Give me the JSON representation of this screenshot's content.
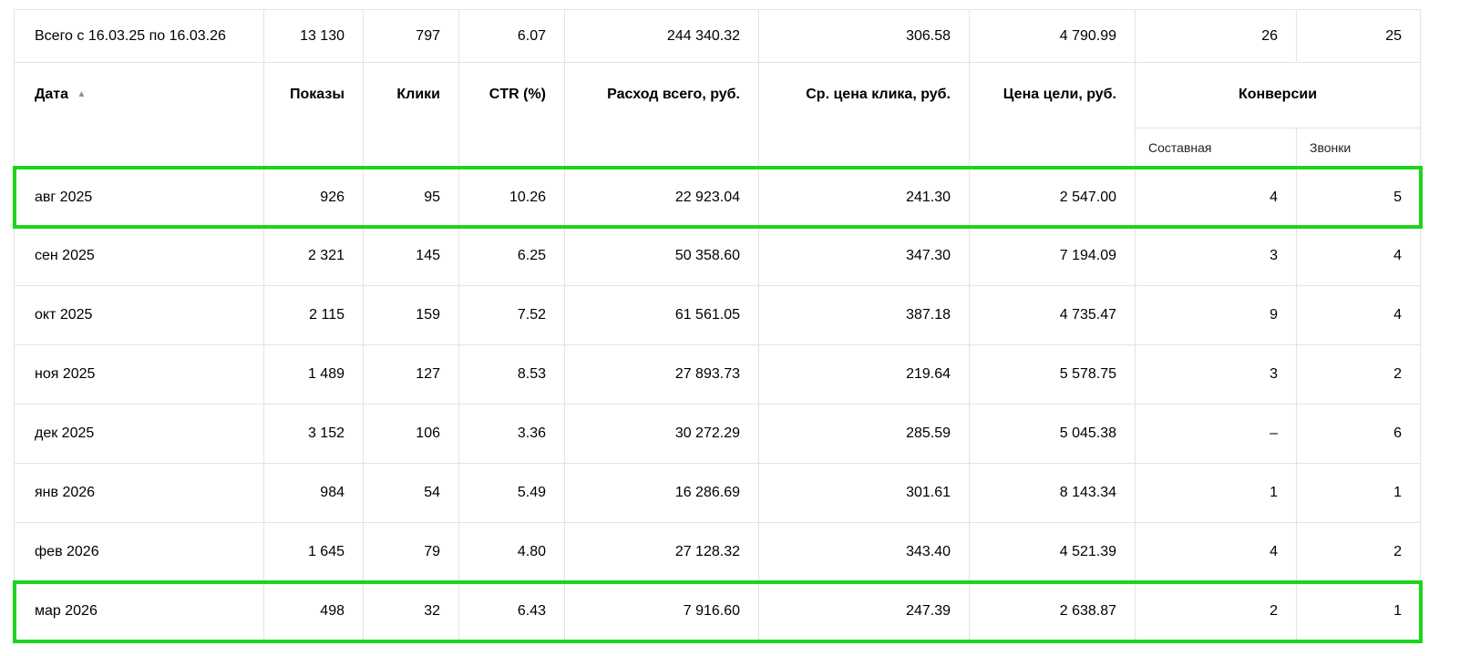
{
  "colors": {
    "highlight_green": "#1bd51b",
    "header_underline": "#000000",
    "grid_border": "#e3e3e3"
  },
  "table": {
    "totals": {
      "label": "Всего с 16.03.25 по 16.03.26",
      "values": [
        "13 130",
        "797",
        "6.07",
        "244 340.32",
        "306.58",
        "4 790.99",
        "26",
        "25"
      ]
    },
    "sort_icon": "▲",
    "columns": [
      {
        "label": "Дата",
        "sorted": "ascending"
      },
      {
        "label": "Показы"
      },
      {
        "label": "Клики"
      },
      {
        "label": "CTR (%)"
      },
      {
        "label": "Расход всего, руб."
      },
      {
        "label": "Ср. цена клика, руб."
      },
      {
        "label": "Цена цели, руб."
      },
      {
        "label": "Конверсии",
        "sub": [
          {
            "label": "Составная"
          },
          {
            "label": "Звонки"
          }
        ]
      }
    ],
    "rows": [
      {
        "date": "авг 2025",
        "values": [
          "926",
          "95",
          "10.26",
          "22 923.04",
          "241.30",
          "2 547.00",
          "4",
          "5"
        ],
        "highlighted": true
      },
      {
        "date": "сен 2025",
        "values": [
          "2 321",
          "145",
          "6.25",
          "50 358.60",
          "347.30",
          "7 194.09",
          "3",
          "4"
        ],
        "highlighted": false
      },
      {
        "date": "окт 2025",
        "values": [
          "2 115",
          "159",
          "7.52",
          "61 561.05",
          "387.18",
          "4 735.47",
          "9",
          "4"
        ],
        "highlighted": false
      },
      {
        "date": "ноя 2025",
        "values": [
          "1 489",
          "127",
          "8.53",
          "27 893.73",
          "219.64",
          "5 578.75",
          "3",
          "2"
        ],
        "highlighted": false
      },
      {
        "date": "дек 2025",
        "values": [
          "3 152",
          "106",
          "3.36",
          "30 272.29",
          "285.59",
          "5 045.38",
          "–",
          "6"
        ],
        "highlighted": false
      },
      {
        "date": "янв 2026",
        "values": [
          "984",
          "54",
          "5.49",
          "16 286.69",
          "301.61",
          "8 143.34",
          "1",
          "1"
        ],
        "highlighted": false
      },
      {
        "date": "фев 2026",
        "values": [
          "1 645",
          "79",
          "4.80",
          "27 128.32",
          "343.40",
          "4 521.39",
          "4",
          "2"
        ],
        "highlighted": false
      },
      {
        "date": "мар 2026",
        "values": [
          "498",
          "32",
          "6.43",
          "7 916.60",
          "247.39",
          "2 638.87",
          "2",
          "1"
        ],
        "highlighted": true
      }
    ]
  }
}
